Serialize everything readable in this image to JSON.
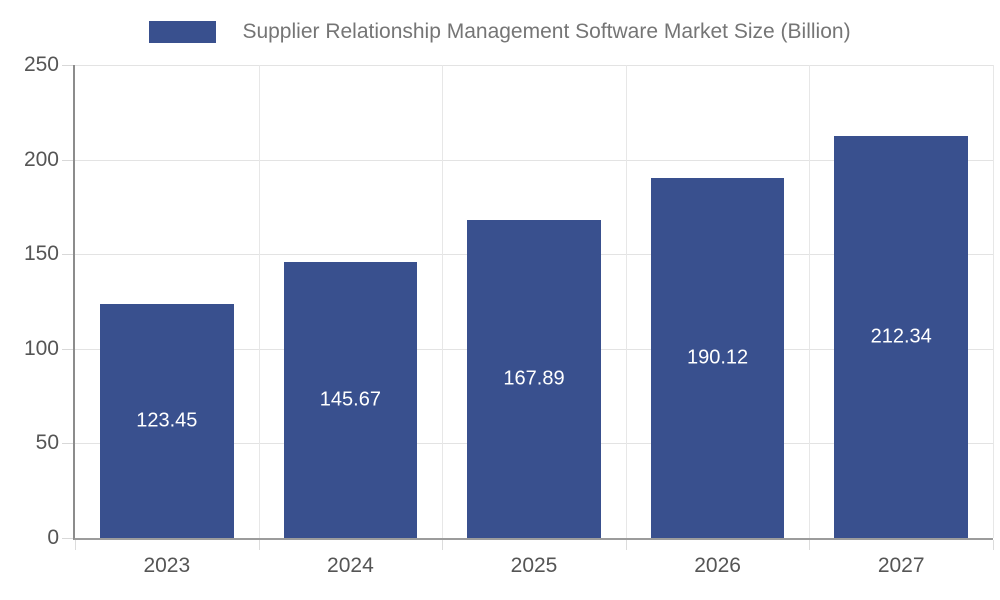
{
  "chart_data": {
    "type": "bar",
    "title": "Supplier Relationship Management Software Market Size (Billion)",
    "legend": {
      "position": "top-center",
      "entries": [
        "Supplier Relationship Management Software Market Size (Billion)"
      ]
    },
    "categories": [
      "2023",
      "2024",
      "2025",
      "2026",
      "2027"
    ],
    "values": [
      123.45,
      145.67,
      167.89,
      190.12,
      212.34
    ],
    "value_labels": [
      "123.45",
      "145.67",
      "167.89",
      "190.12",
      "212.34"
    ],
    "xlabel": "",
    "ylabel": "",
    "ylim": [
      0,
      250
    ],
    "yticks": [
      0,
      50,
      100,
      150,
      200,
      250
    ],
    "grid": true,
    "colors": {
      "bar": "#39508E",
      "bar_label": "#ffffff",
      "legend_text": "#757575",
      "tick_text": "#555555",
      "axis_y": "#8c8c8c",
      "axis_x": "#9c9c9c",
      "gridline": "#e3e3e3",
      "background": "#ffffff"
    }
  }
}
